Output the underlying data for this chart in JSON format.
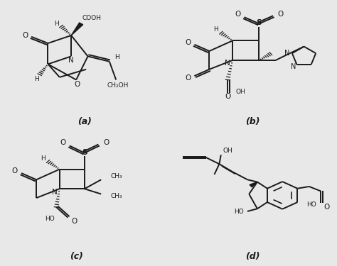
{
  "labels": [
    "(a)",
    "(b)",
    "(c)",
    "(d)"
  ],
  "label_fontsize": 9,
  "line_color": "#1a1a1a",
  "line_width": 1.4,
  "fs": 6.5,
  "bg": "#e8e8e8",
  "panel_bg": "#ffffff"
}
